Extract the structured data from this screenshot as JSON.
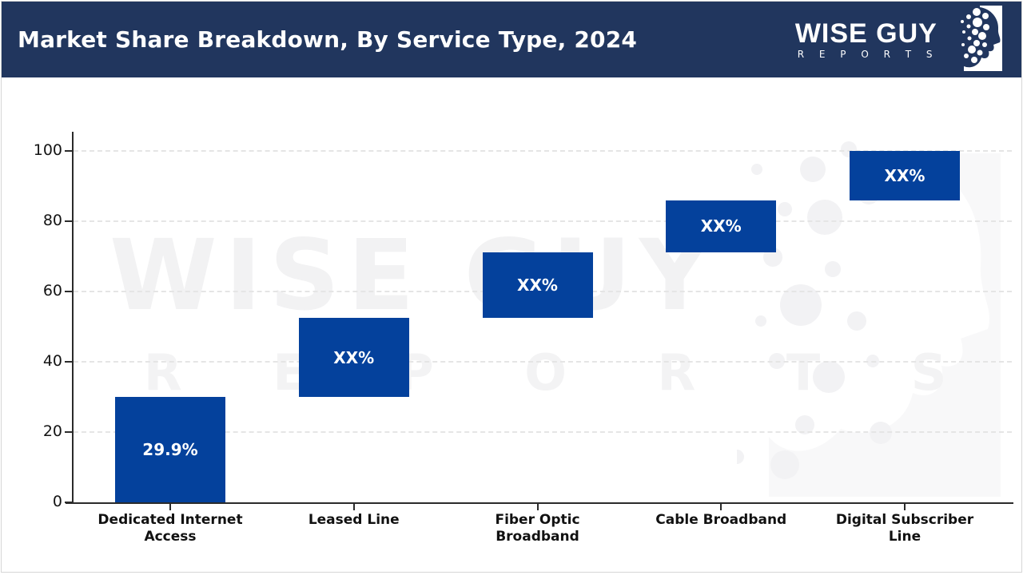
{
  "header": {
    "title": "Market Share Breakdown, By Service Type, 2024",
    "background": "#21365e",
    "logo": {
      "brand": "WISE GUY",
      "sub": "R E P O R T S"
    }
  },
  "watermark": {
    "line1": "WISE GUY",
    "line2": "R E P O R T S"
  },
  "chart_data": {
    "type": "bar",
    "subtype": "waterfall",
    "title": "Market Share Breakdown, By Service Type, 2024",
    "categories": [
      "Dedicated Internet Access",
      "Leased Line",
      "Fiber Optic Broadband",
      "Cable Broadband",
      "Digital Subscriber Line"
    ],
    "category_lines": [
      [
        "Dedicated Internet",
        "Access"
      ],
      [
        "Leased Line"
      ],
      [
        "Fiber Optic",
        "Broadband"
      ],
      [
        "Cable Broadband"
      ],
      [
        "Digital Subscriber",
        "Line"
      ]
    ],
    "series": [
      {
        "name": "Market Share (%)",
        "segments": [
          {
            "category": "Dedicated Internet Access",
            "start": 0,
            "end": 29.9,
            "label": "29.9%"
          },
          {
            "category": "Leased Line",
            "start": 29.9,
            "end": 52.4,
            "label": "XX%"
          },
          {
            "category": "Fiber Optic Broadband",
            "start": 52.4,
            "end": 71.2,
            "label": "XX%"
          },
          {
            "category": "Cable Broadband",
            "start": 71.2,
            "end": 85.9,
            "label": "XX%"
          },
          {
            "category": "Digital Subscriber Line",
            "start": 85.9,
            "end": 100,
            "label": "XX%"
          }
        ]
      }
    ],
    "ylim": [
      0,
      100
    ],
    "yticks": [
      "0",
      "20",
      "40",
      "60",
      "80",
      "100"
    ],
    "grid": "horizontal-dashed",
    "legend": "none",
    "bar_color": "#04419c",
    "bar_label_color": "#ffffff"
  }
}
